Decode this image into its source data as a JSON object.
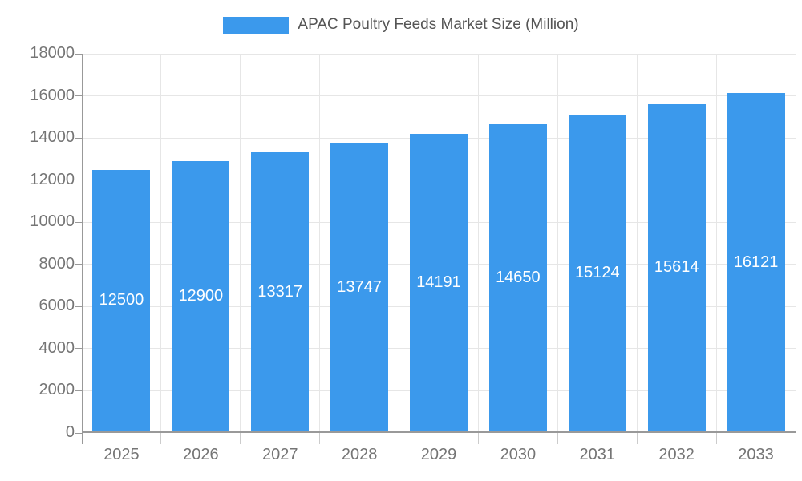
{
  "legend": {
    "label": "APAC Poultry Feeds Market Size (Million)"
  },
  "chart_data": {
    "type": "bar",
    "title": "",
    "categories": [
      "2025",
      "2026",
      "2027",
      "2028",
      "2029",
      "2030",
      "2031",
      "2032",
      "2033"
    ],
    "series": [
      {
        "name": "APAC Poultry Feeds Market Size (Million)",
        "values": [
          12500,
          12900,
          13317,
          13747,
          14191,
          14650,
          15124,
          15614,
          16121
        ]
      }
    ],
    "value_labels": [
      12500,
      12900,
      13317,
      13747,
      14191,
      14650,
      15124,
      15614,
      16121
    ],
    "xlabel": "",
    "ylabel": "",
    "ylim": [
      0,
      18000
    ],
    "ytick_step": 2000,
    "ytick_labels": [
      "0",
      "2000",
      "4000",
      "6000",
      "8000",
      "10000",
      "12000",
      "14000",
      "16000",
      "18000"
    ],
    "grid": true,
    "legend_position": "top-center",
    "value_label_style": "centered-inside-white"
  },
  "colors": {
    "bar_fill": "#3B99EC",
    "gridline": "#E6E6E6",
    "axis_line": "#999999",
    "tick_label": "#757575",
    "legend_text": "#555555",
    "bar_value_text": "#FFFFFF",
    "background": "#FFFFFF"
  }
}
